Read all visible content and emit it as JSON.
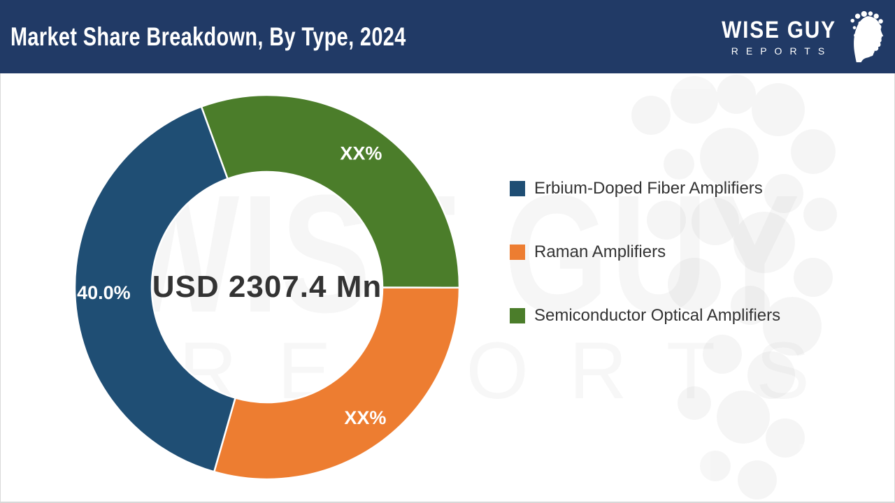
{
  "header": {
    "title": "Market Share Breakdown, By Type, 2024",
    "background": "#213a66",
    "logo": {
      "line1": "WISE GUY",
      "line2": "REPORTS"
    }
  },
  "watermark": {
    "line1": "WISE GUY",
    "line2": "REPORTS"
  },
  "chart_data": {
    "type": "donut",
    "title": "Market Share Breakdown, By Type, 2024",
    "center_label": "USD 2307.4 Mn",
    "donut_hole_ratio": 0.6,
    "start_angle_deg": -110,
    "draw_order": [
      2,
      1,
      0
    ],
    "legend_position": "right",
    "grid": false,
    "segments": [
      {
        "label": "Erbium-Doped Fiber Amplifiers",
        "share_label": "40.0%",
        "value_pct": 40.0,
        "color": "#1f4e74"
      },
      {
        "label": "Raman Amplifiers",
        "share_label": "XX%",
        "value_pct": 29.4,
        "color": "#ed7d31"
      },
      {
        "label": "Semiconductor Optical Amplifiers",
        "share_label": "XX%",
        "value_pct": 30.6,
        "color": "#4b7d2a"
      }
    ]
  }
}
